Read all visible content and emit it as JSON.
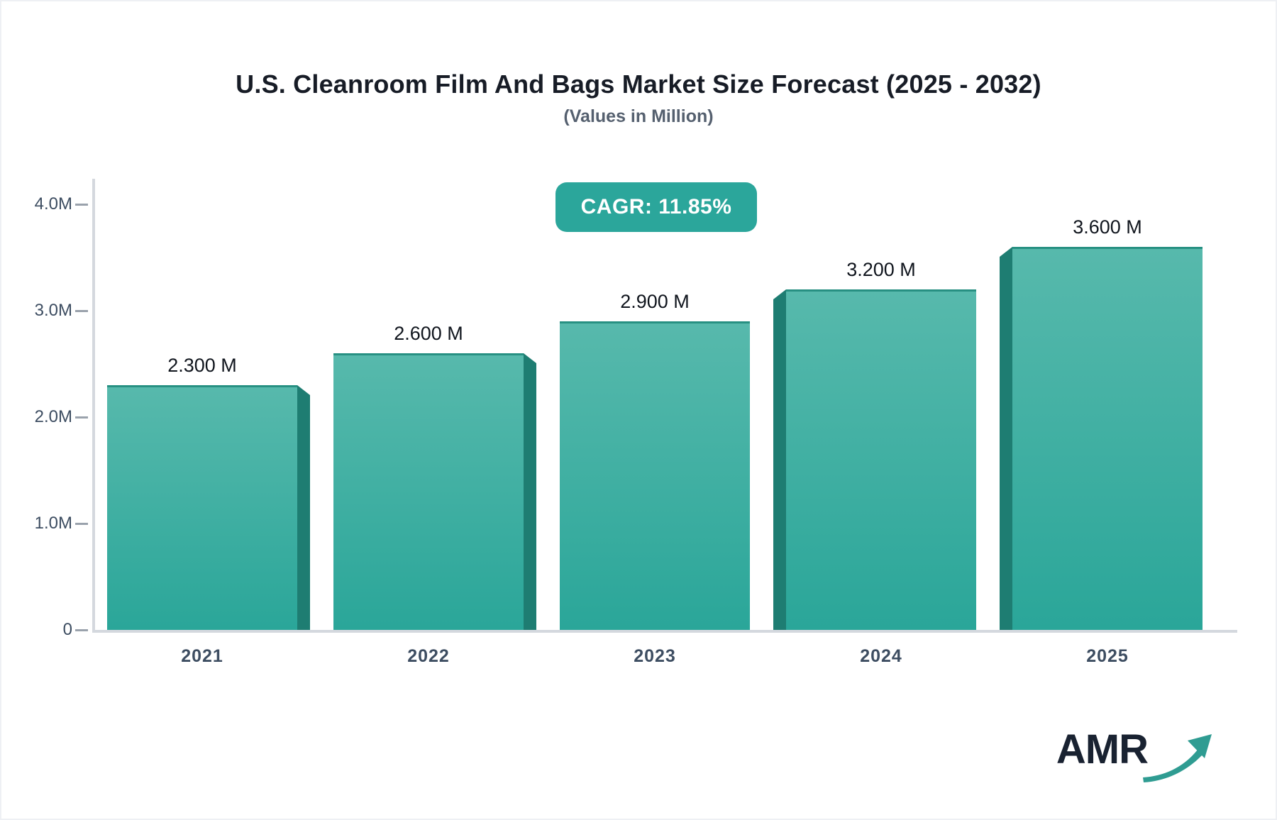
{
  "title": "U.S. Cleanroom Film And Bags Market Size Forecast (2025 - 2032)",
  "subtitle": "(Values in Million)",
  "badge": {
    "label": "CAGR: 11.85%",
    "bg_color": "#2ba69b"
  },
  "logo": {
    "text": "AMR",
    "arrow_color": "#2f9c92"
  },
  "chart_data": {
    "type": "bar",
    "title": "U.S. Cleanroom Film And Bags Market Size Forecast (2025 - 2032)",
    "subtitle": "(Values in Million)",
    "unit": "Million",
    "categories": [
      "2021",
      "2022",
      "2023",
      "2024",
      "2025"
    ],
    "values": [
      2.3,
      2.6,
      2.9,
      3.2,
      3.6
    ],
    "bar_labels": [
      "2.300 M",
      "2.600 M",
      "2.900 M",
      "3.200 M",
      "3.600 M"
    ],
    "cagr_annotation": "CAGR: 11.85%",
    "ylim": [
      0,
      4
    ],
    "y_ticks": [
      {
        "label": "0",
        "value": 0
      },
      {
        "label": "1.0M",
        "value": 1
      },
      {
        "label": "2.0M",
        "value": 2
      },
      {
        "label": "3.0M",
        "value": 3
      },
      {
        "label": "4.0M",
        "value": 4
      }
    ],
    "grid": false,
    "legend": false,
    "colors": {
      "bar_gradient_top": "#57b9ac",
      "bar_gradient_bottom": "#2aa699",
      "bar_side_3d": "#1e7d72",
      "bar_top_edge": "#279082",
      "axis_line": "#d4d8de"
    }
  }
}
